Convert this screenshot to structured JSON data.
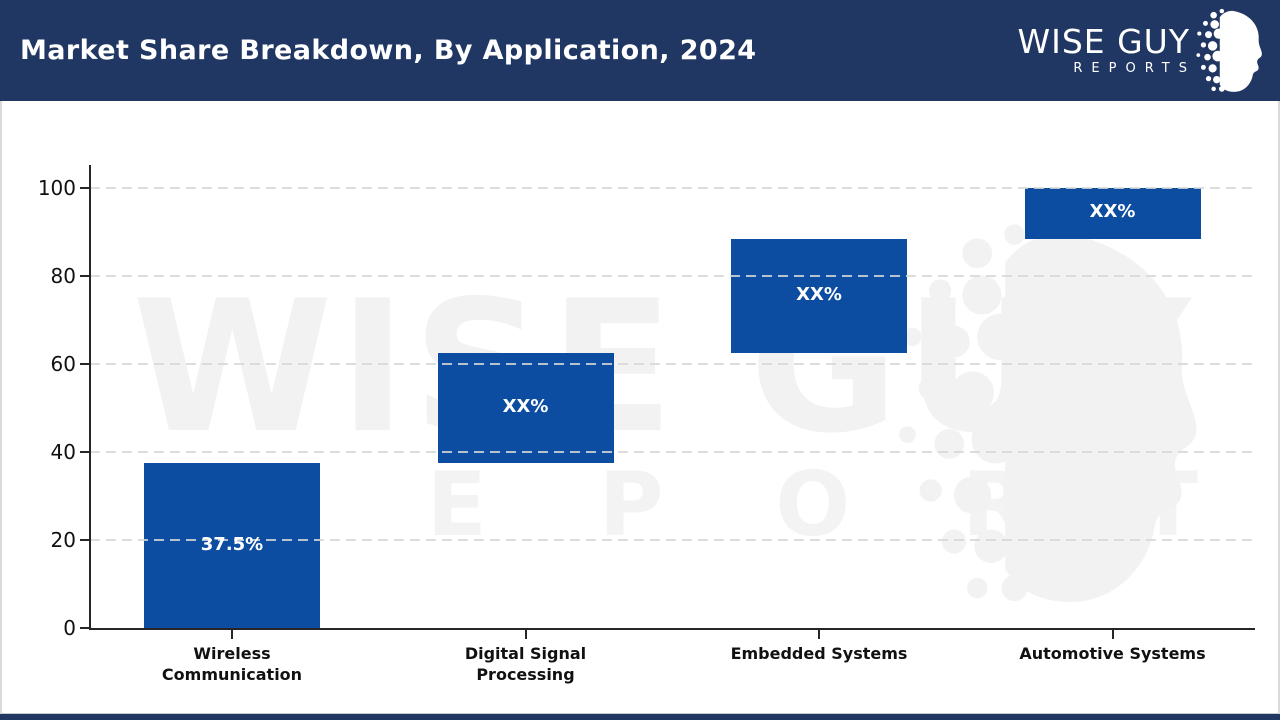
{
  "header": {
    "title": "Market Share Breakdown, By Application, 2024",
    "logo": {
      "line1": "WISE GUY",
      "line2": "REPORTS"
    }
  },
  "watermark": {
    "line1": "WISE GUY",
    "line2": "REPORTS"
  },
  "colors": {
    "header_bg": "#213763",
    "bar": "#0c4da2",
    "grid": "#d7d7d7",
    "axis": "#262626",
    "watermark": "#f2f2f2"
  },
  "chart_data": {
    "type": "bar",
    "subtype": "waterfall-floating-bars",
    "title": "Market Share Breakdown, By Application, 2024",
    "categories": [
      "Wireless\nCommunication",
      "Digital Signal\nProcessing",
      "Embedded Systems",
      "Automotive Systems"
    ],
    "segments": [
      [
        0,
        37.5
      ],
      [
        37.5,
        62.5
      ],
      [
        62.5,
        88.5
      ],
      [
        88.5,
        100
      ]
    ],
    "bar_labels": [
      "37.5%",
      "XX%",
      "XX%",
      "XX%"
    ],
    "yticks": [
      0,
      20,
      40,
      60,
      80,
      100
    ],
    "ylim": [
      0,
      100
    ],
    "xlabel": "",
    "ylabel": "",
    "grid": "dashed-horizontal",
    "legend": "none"
  }
}
